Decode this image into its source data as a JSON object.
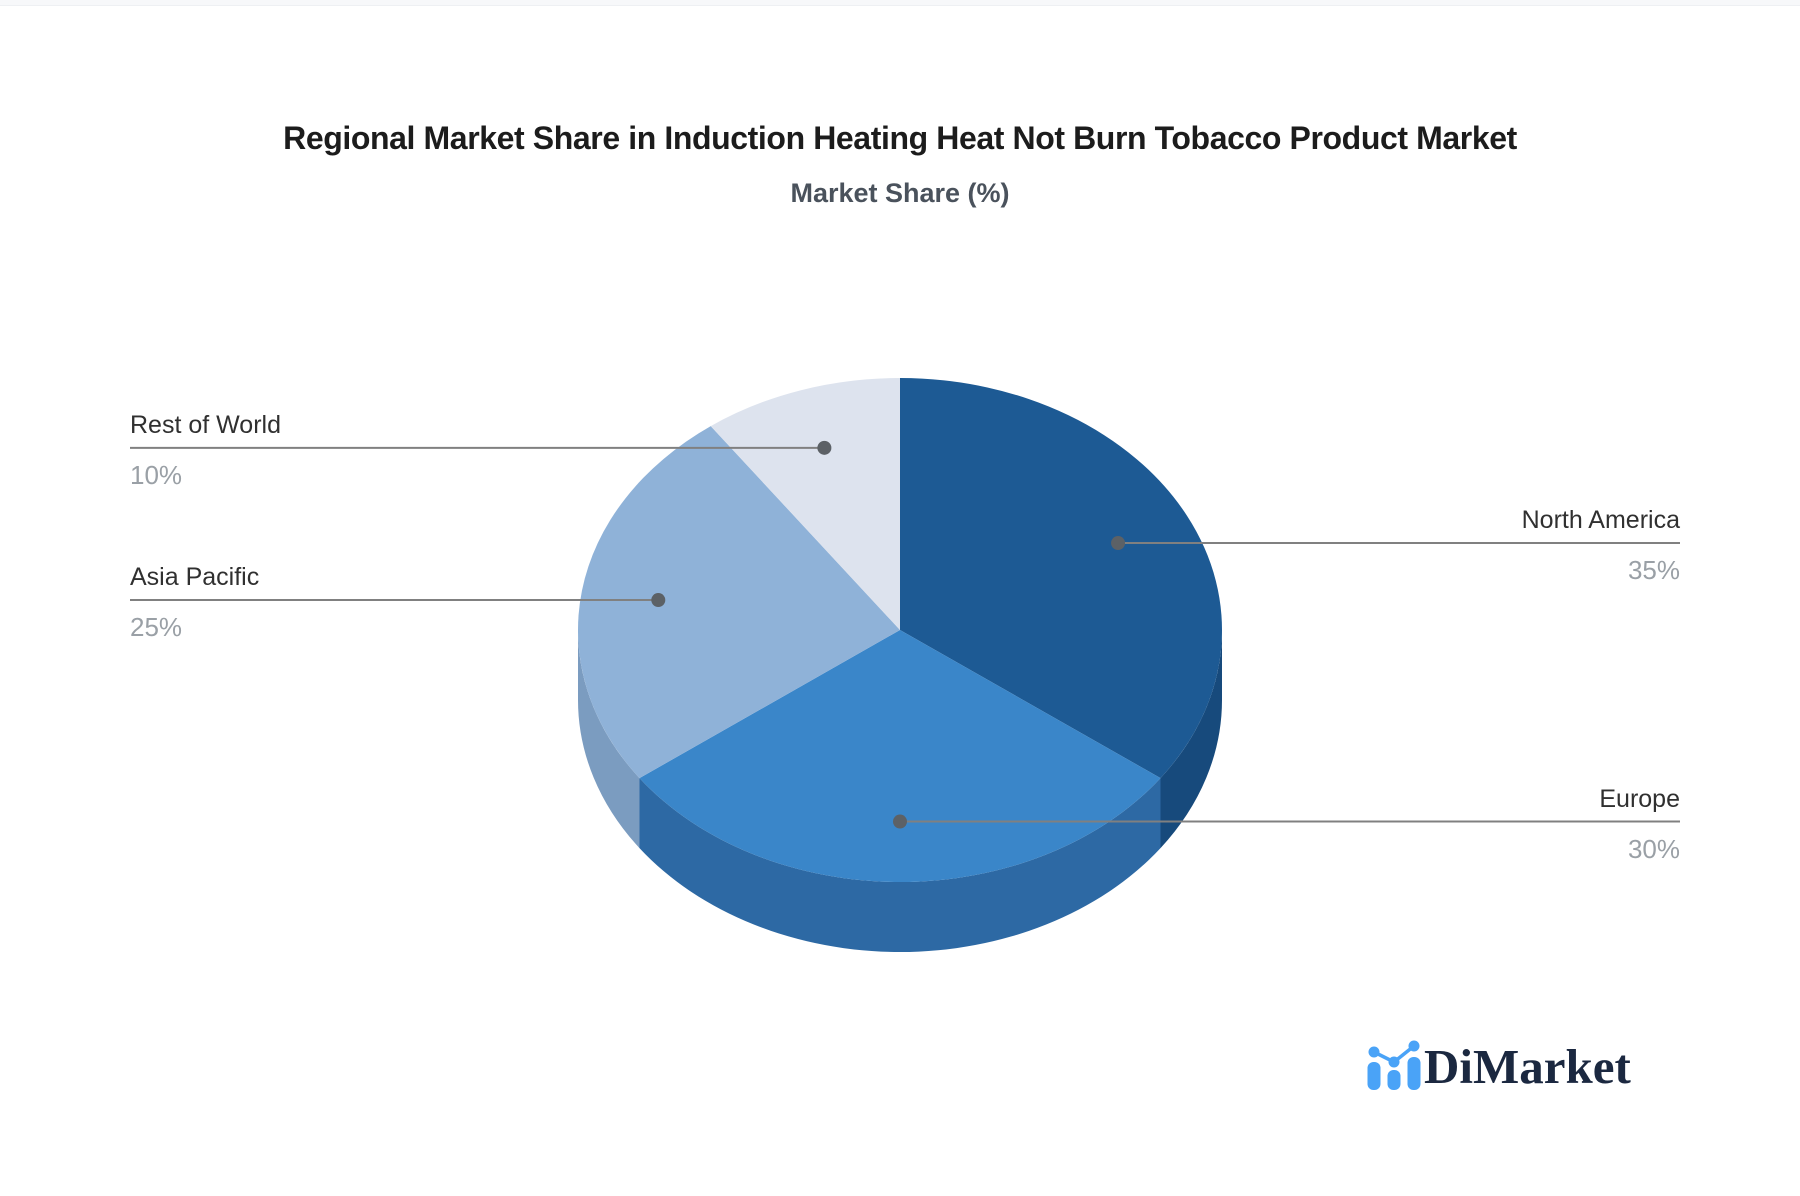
{
  "header": {
    "title": "Regional Market Share in Induction Heating Heat Not Burn Tobacco Product Market",
    "subtitle": "Market Share (%)"
  },
  "chart_data": {
    "type": "pie",
    "title": "Regional Market Share in Induction Heating Heat Not Burn Tobacco Product Market",
    "subtitle": "Market Share (%)",
    "unit": "%",
    "style": "3d-pie",
    "start_angle_deg": -90,
    "direction": "clockwise",
    "legend_position": "none",
    "categories": [
      "North America",
      "Europe",
      "Asia Pacific",
      "Rest of World"
    ],
    "values": [
      35,
      30,
      25,
      10
    ],
    "slices": [
      {
        "label": "North America",
        "value": 35,
        "pct_label": "35%",
        "color": "#1d5a94",
        "side_color": "#174a7c",
        "label_side": "right"
      },
      {
        "label": "Europe",
        "value": 30,
        "pct_label": "30%",
        "color": "#3a86c9",
        "side_color": "#2d69a4",
        "label_side": "right"
      },
      {
        "label": "Asia Pacific",
        "value": 25,
        "pct_label": "25%",
        "color": "#8fb2d8",
        "side_color": "#7b9cc0",
        "label_side": "left"
      },
      {
        "label": "Rest of World",
        "value": 10,
        "pct_label": "10%",
        "color": "#dde3ee",
        "side_color": "#c3cedd",
        "label_side": "left"
      }
    ],
    "label_style": {
      "name_color": "#303030",
      "pct_color": "#9aa0a6",
      "line_color": "#808080",
      "dot_color": "#5c6166"
    }
  },
  "brand": {
    "name": "DiMarket",
    "mark_color": "#4aa3f7",
    "text_color": "#1b2840"
  }
}
